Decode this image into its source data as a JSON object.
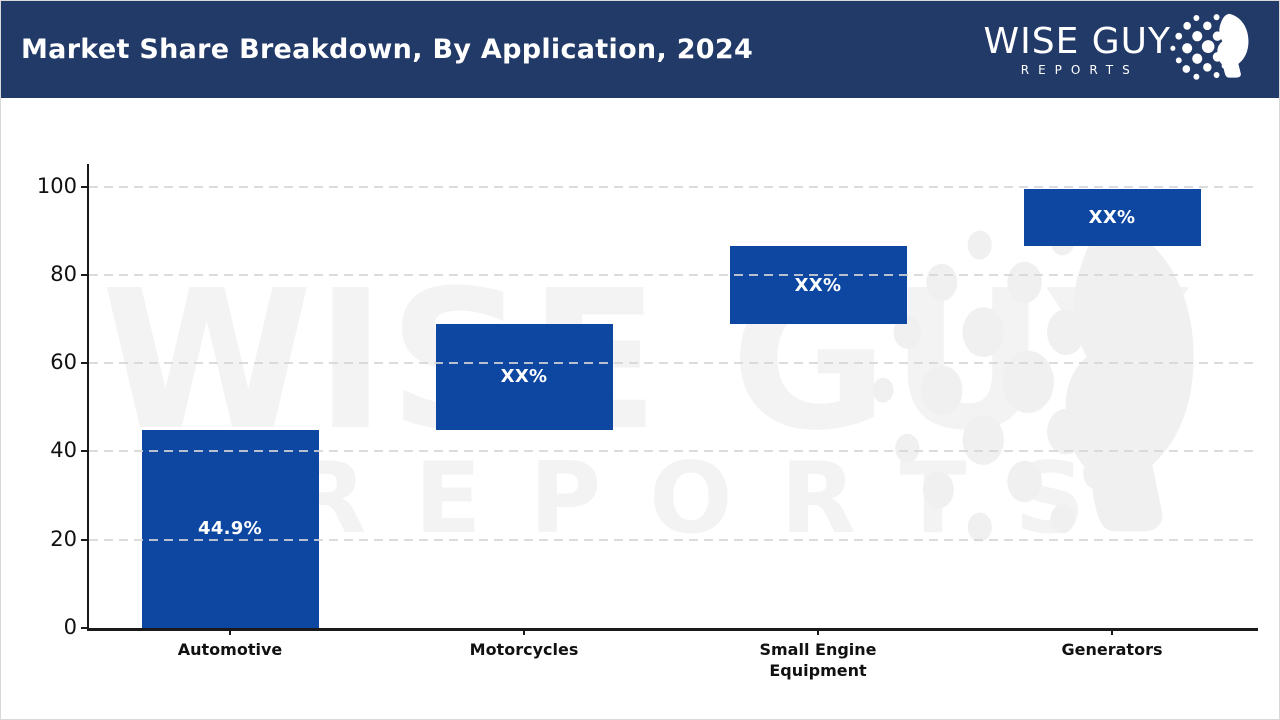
{
  "header": {
    "title": "Market Share Breakdown, By Application, 2024",
    "logo": {
      "line1": "WISE GUY",
      "line2": "REPORTS"
    }
  },
  "watermark": {
    "line1": "WISE GUY",
    "line2": "REPORTS"
  },
  "chart_data": {
    "type": "bar",
    "subtype": "waterfall",
    "title": "Market Share Breakdown, By Application, 2024",
    "xlabel": "",
    "ylabel": "",
    "categories": [
      "Automotive",
      "Motorcycles",
      "Small Engine Equipment",
      "Generators"
    ],
    "segments": [
      {
        "category": "Automotive",
        "start": 0,
        "end": 44.9,
        "label": "44.9%"
      },
      {
        "category": "Motorcycles",
        "start": 44.9,
        "end": 68.8,
        "label": "XX%"
      },
      {
        "category": "Small Engine Equipment",
        "start": 68.8,
        "end": 86.5,
        "label": "XX%"
      },
      {
        "category": "Generators",
        "start": 86.5,
        "end": 99.4,
        "label": "XX%"
      }
    ],
    "yticks": [
      0,
      20,
      40,
      60,
      80,
      100
    ],
    "ylim": [
      0,
      105
    ],
    "grid": "dashed-horizontal",
    "legend": false,
    "bar_color": "#0d47a1",
    "bar_label_color": "#ffffff"
  },
  "colors": {
    "header_bg": "#223a68",
    "bar": "#0d47a1",
    "axis": "#1a1a1a",
    "gridline": "#d6d6d6",
    "watermark": "#f3f3f3",
    "page_border": "#d9d9d9"
  }
}
